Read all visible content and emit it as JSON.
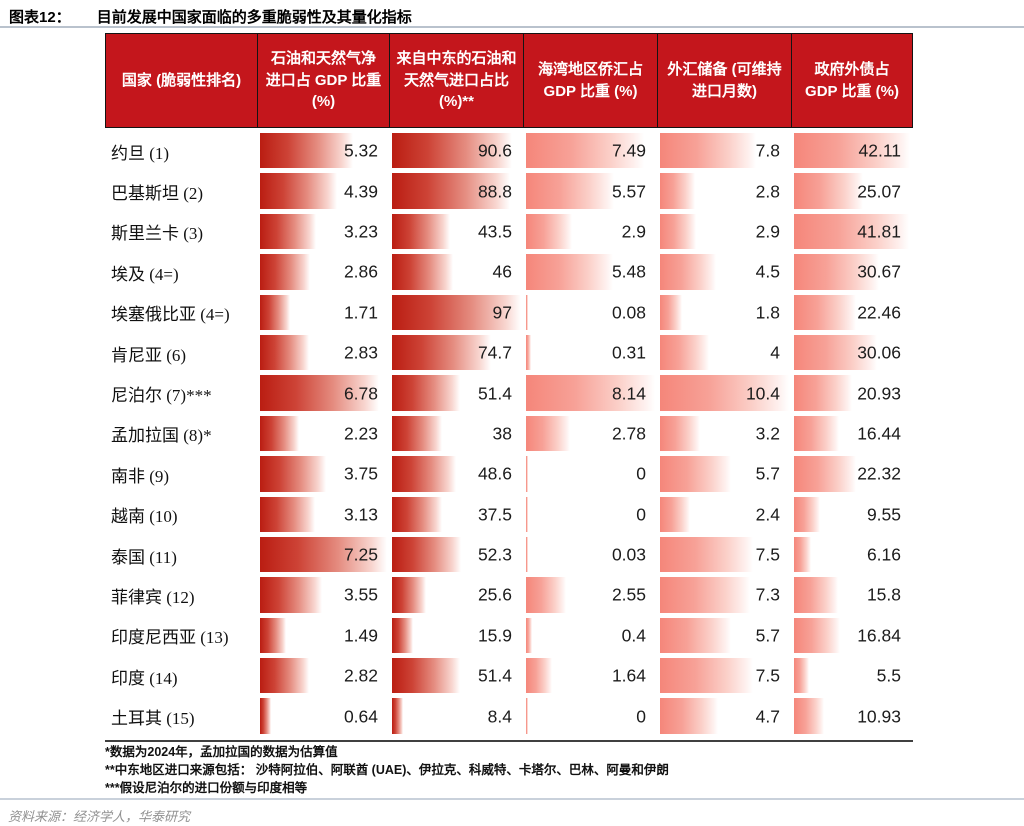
{
  "title": {
    "tag": "图表12：",
    "text": "目前发展中国家面临的多重脆弱性及其量化指标"
  },
  "chart_data": {
    "type": "table",
    "title": "目前发展中国家面临的多重脆弱性及其量化指标",
    "columns": [
      "国家 (脆弱性排名)",
      "石油和天然气净进口占 GDP 比重 (%)",
      "来自中东的石油和天然气进口占比 (%)**",
      "海湾地区侨汇占 GDP 比重 (%)",
      "外汇储备 (可维持进口月数)",
      "政府外债占 GDP 比重 (%)"
    ],
    "rows": [
      {
        "country": "约旦 (1)",
        "values": [
          "5.32",
          "90.6",
          "7.49",
          "7.8",
          "42.11"
        ]
      },
      {
        "country": "巴基斯坦 (2)",
        "values": [
          "4.39",
          "88.8",
          "5.57",
          "2.8",
          "25.07"
        ]
      },
      {
        "country": "斯里兰卡 (3)",
        "values": [
          "3.23",
          "43.5",
          "2.9",
          "2.9",
          "41.81"
        ]
      },
      {
        "country": "埃及 (4=)",
        "values": [
          "2.86",
          "46",
          "5.48",
          "4.5",
          "30.67"
        ]
      },
      {
        "country": "埃塞俄比亚 (4=)",
        "values": [
          "1.71",
          "97",
          "0.08",
          "1.8",
          "22.46"
        ]
      },
      {
        "country": "肯尼亚 (6)",
        "values": [
          "2.83",
          "74.7",
          "0.31",
          "4",
          "30.06"
        ]
      },
      {
        "country": "尼泊尔 (7)***",
        "values": [
          "6.78",
          "51.4",
          "8.14",
          "10.4",
          "20.93"
        ]
      },
      {
        "country": "孟加拉国 (8)*",
        "values": [
          "2.23",
          "38",
          "2.78",
          "3.2",
          "16.44"
        ]
      },
      {
        "country": "南非 (9)",
        "values": [
          "3.75",
          "48.6",
          "0",
          "5.7",
          "22.32"
        ]
      },
      {
        "country": "越南 (10)",
        "values": [
          "3.13",
          "37.5",
          "0",
          "2.4",
          "9.55"
        ]
      },
      {
        "country": "泰国 (11)",
        "values": [
          "7.25",
          "52.3",
          "0.03",
          "7.5",
          "6.16"
        ]
      },
      {
        "country": "菲律宾 (12)",
        "values": [
          "3.55",
          "25.6",
          "2.55",
          "7.3",
          "15.8"
        ]
      },
      {
        "country": "印度尼西亚 (13)",
        "values": [
          "1.49",
          "15.9",
          "0.4",
          "5.7",
          "16.84"
        ]
      },
      {
        "country": "印度 (14)",
        "values": [
          "2.82",
          "51.4",
          "1.64",
          "7.5",
          "5.5"
        ]
      },
      {
        "country": "土耳其 (15)",
        "values": [
          "0.64",
          "8.4",
          "0",
          "4.7",
          "10.93"
        ]
      }
    ],
    "column_max": [
      7.25,
      97,
      8.14,
      10.4,
      42.11
    ],
    "bar_style_per_column": [
      "dark",
      "dark",
      "light",
      "light",
      "light"
    ],
    "layout": {
      "grid": false,
      "bars": "left-aligned gradient data bars",
      "values": "right-aligned"
    }
  },
  "footnotes": [
    "*数据为2024年，孟加拉国的数据为估算值",
    "**中东地区进口来源包括： 沙特阿拉伯、阿联酋 (UAE)、伊拉克、科威特、卡塔尔、巴林、阿曼和伊朗",
    "***假设尼泊尔的进口份额与印度相等"
  ],
  "source": "资料来源：经济学人，华泰研究",
  "colors": {
    "header_bg": "#c4161c",
    "header_text": "#ffffff",
    "bar_dark_start": "#ba1d12",
    "bar_light_start": "#f5867a",
    "value_text": "#1c1c1c",
    "rule_light": "#b9c2cd",
    "table_bottom_rule": "#404040",
    "source_text": "#919191"
  }
}
